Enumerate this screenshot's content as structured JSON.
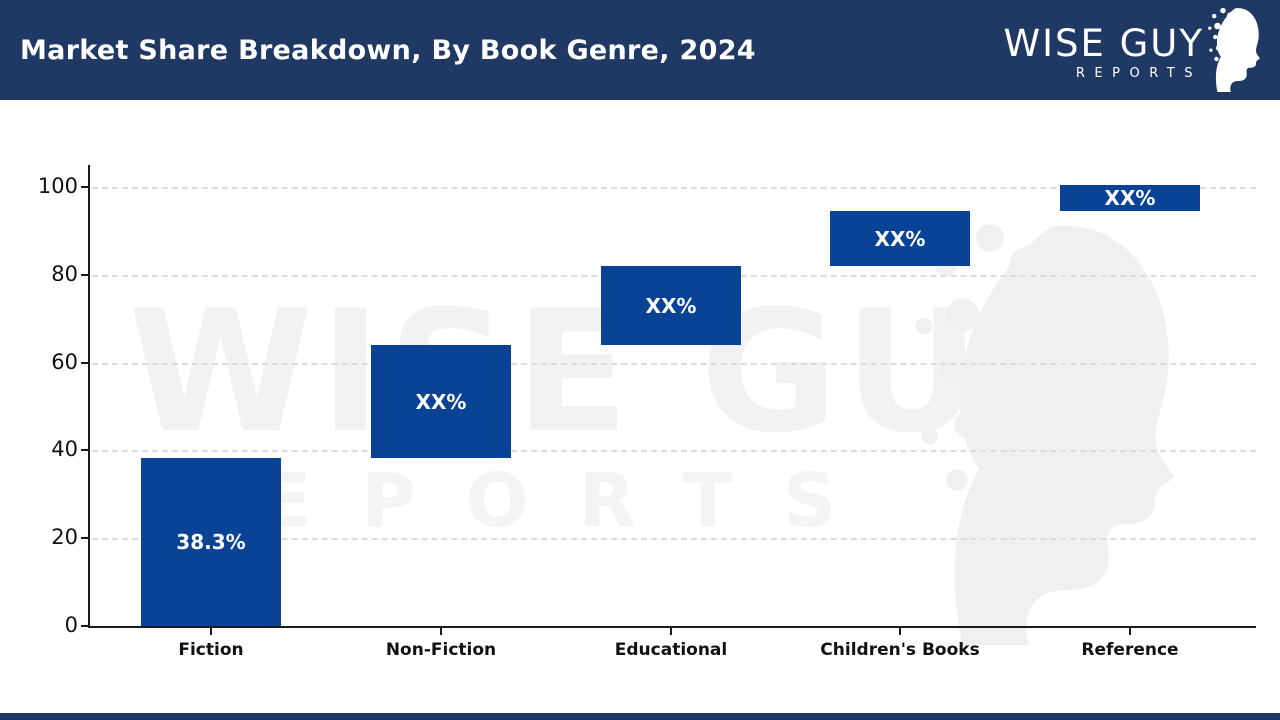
{
  "header": {
    "title": "Market Share Breakdown, By Book Genre, 2024",
    "logo_line1": "WISE GUY",
    "logo_line2": "REPORTS",
    "bg_color": "#203864"
  },
  "watermark": {
    "line1": "WISE GUY",
    "line2": "REPORTS"
  },
  "chart_data": {
    "type": "bar",
    "subtype": "waterfall",
    "title": "Market Share Breakdown, By Book Genre, 2024",
    "xlabel": "",
    "ylabel": "",
    "categories": [
      "Fiction",
      "Non-Fiction",
      "Educational",
      "Children's Books",
      "Reference"
    ],
    "segments": [
      {
        "category": "Fiction",
        "start": 0,
        "end": 38.3,
        "label": "38.3%"
      },
      {
        "category": "Non-Fiction",
        "start": 38.3,
        "end": 64.0,
        "label": "XX%"
      },
      {
        "category": "Educational",
        "start": 64.0,
        "end": 81.9,
        "label": "XX%"
      },
      {
        "category": "Children's Books",
        "start": 81.9,
        "end": 94.5,
        "label": "XX%"
      },
      {
        "category": "Reference",
        "start": 94.5,
        "end": 100.5,
        "label": "XX%"
      }
    ],
    "yticks": [
      0,
      20,
      40,
      60,
      80,
      100
    ],
    "ylim": [
      0,
      105
    ],
    "grid": "horizontal-dashed",
    "legend": "none",
    "bar_color": "#0a4296",
    "label_color": "#ffffff"
  }
}
